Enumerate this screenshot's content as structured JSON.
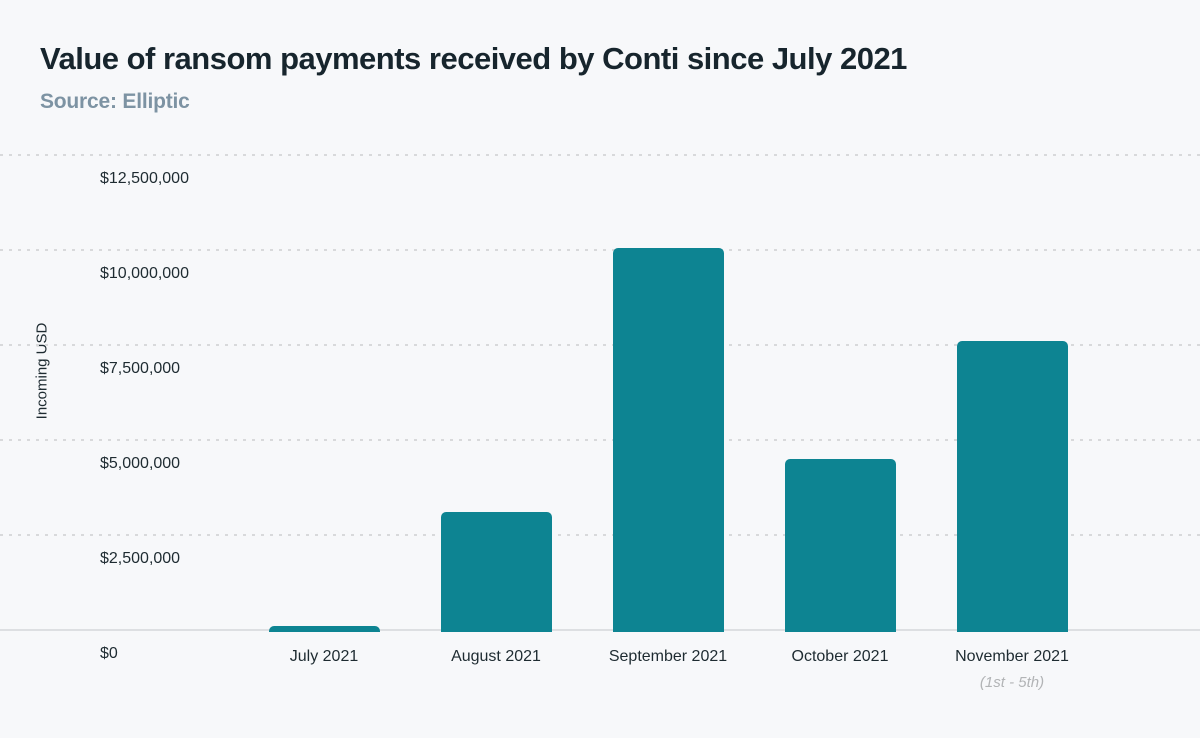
{
  "header": {
    "title": "Value of ransom payments received by Conti since July 2021",
    "subtitle": "Source: Elliptic"
  },
  "colors": {
    "background": "#f7f8fa",
    "bar": "#0d8492",
    "title": "#17252d",
    "subtitle": "#7d93a3",
    "gridline": "#d8d9db",
    "axis_line": "#dddfe2",
    "tick_label": "#1e2b31",
    "sublabel": "#b2b4b6"
  },
  "chart_data": {
    "type": "bar",
    "title": "Value of ransom payments received by Conti since July 2021",
    "subtitle": "Source: Elliptic",
    "xlabel": "",
    "ylabel": "Incoming USD",
    "categories": [
      "July 2021",
      "August 2021",
      "September 2021",
      "October 2021",
      "November 2021"
    ],
    "category_sublabels": [
      "",
      "",
      "",
      "",
      "(1st - 5th)"
    ],
    "values": [
      100000,
      3100000,
      10050000,
      4500000,
      7600000
    ],
    "ytick_values": [
      0,
      2500000,
      5000000,
      7500000,
      10000000,
      12500000
    ],
    "ytick_labels": [
      "$0",
      "$2,500,000",
      "$5,000,000",
      "$7,500,000",
      "$10,000,000",
      "$12,500,000"
    ],
    "ylim": [
      0,
      13100000
    ],
    "grid": "horizontal-dotted",
    "legend": "none"
  }
}
